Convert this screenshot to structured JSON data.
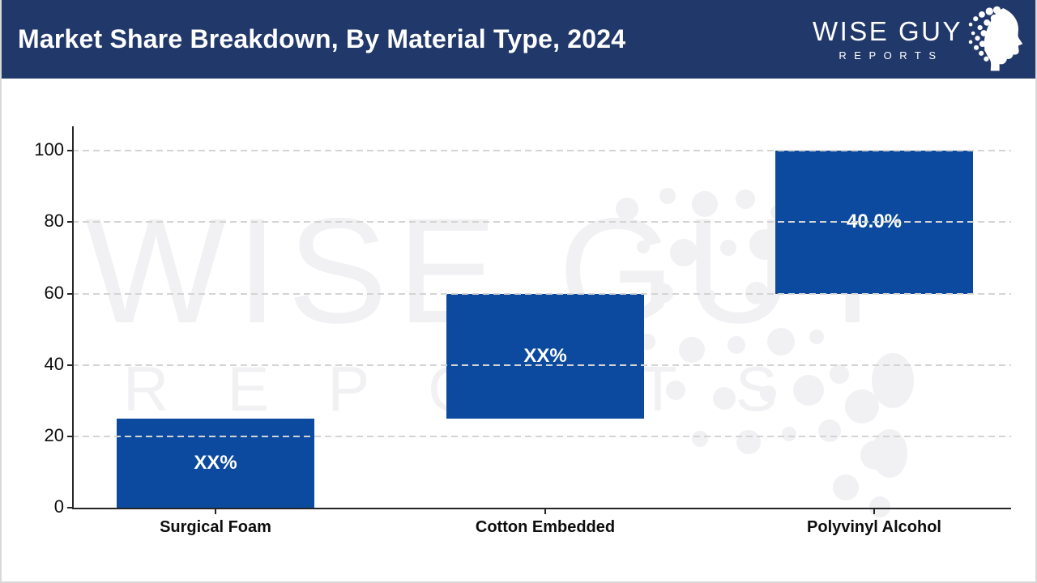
{
  "header": {
    "title": "Market Share Breakdown, By Material Type, 2024",
    "logo": {
      "line1": "WISE GUY",
      "line2": "REPORTS"
    }
  },
  "watermark": {
    "line1": "WISE GUY",
    "line2": "REPORTS"
  },
  "chart_data": {
    "type": "bar",
    "subtype": "waterfall",
    "title": "Market Share Breakdown, By Material Type, 2024",
    "categories": [
      "Surgical Foam",
      "Cotton Embedded",
      "Polyvinyl Alcohol"
    ],
    "segments": [
      {
        "category": "Surgical Foam",
        "start": 0,
        "end": 25,
        "value": 25,
        "label": "XX%"
      },
      {
        "category": "Cotton Embedded",
        "start": 25,
        "end": 60,
        "value": 35,
        "label": "XX%"
      },
      {
        "category": "Polyvinyl Alcohol",
        "start": 60,
        "end": 100,
        "value": 40,
        "label": "40.0%"
      }
    ],
    "xlabel": "",
    "ylabel": "",
    "ylim": [
      0,
      100
    ],
    "yticks": [
      0,
      20,
      40,
      60,
      80,
      100
    ],
    "grid": "horizontal-dashed",
    "legend": "none",
    "bar_color": "#0b4a9e",
    "bar_label_color": "#ffffff"
  },
  "colors": {
    "header_bg": "#21386a",
    "bar": "#0b4a9e",
    "grid": "#d4d4d4",
    "axis": "#262626",
    "tick_text": "#0d0d0d",
    "watermark": "#f1f1f4",
    "title_text": "#ffffff"
  }
}
